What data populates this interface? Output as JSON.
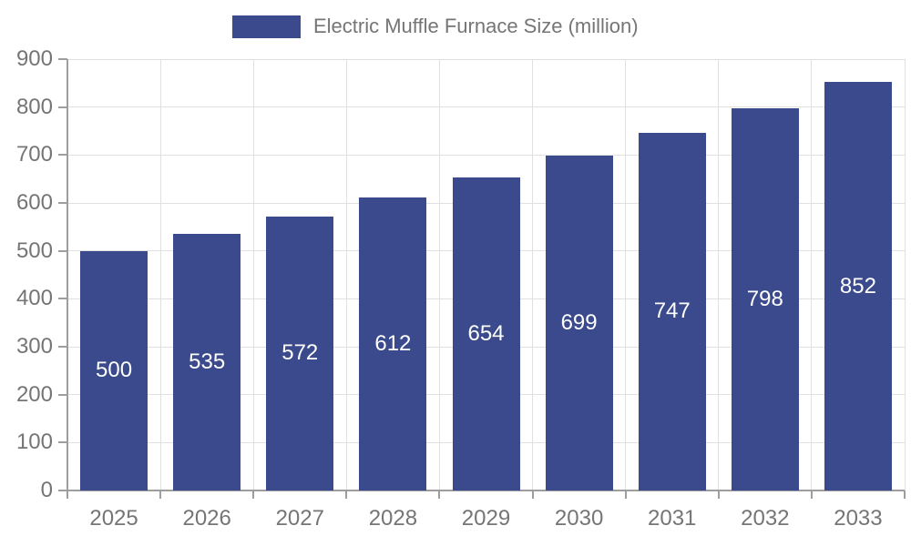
{
  "chart_data": {
    "type": "bar",
    "title": "Electric Muffle Furnace Size (million)",
    "legend_entries": [
      "Electric Muffle Furnace Size (million)"
    ],
    "legend_position": "top-center",
    "categories": [
      "2025",
      "2026",
      "2027",
      "2028",
      "2029",
      "2030",
      "2031",
      "2032",
      "2033"
    ],
    "values": [
      500,
      535,
      572,
      612,
      654,
      699,
      747,
      798,
      852
    ],
    "xlabel": "",
    "ylabel": "",
    "ylim": [
      0,
      900
    ],
    "ytick_step": 100,
    "grid": true,
    "colors": {
      "bar": "#3a4a8c",
      "bar_value_label": "#ffffff",
      "grid_line": "#e0e0e0",
      "axis_line": "#9e9e9e",
      "axis_text": "#757575",
      "background": "#ffffff"
    }
  }
}
